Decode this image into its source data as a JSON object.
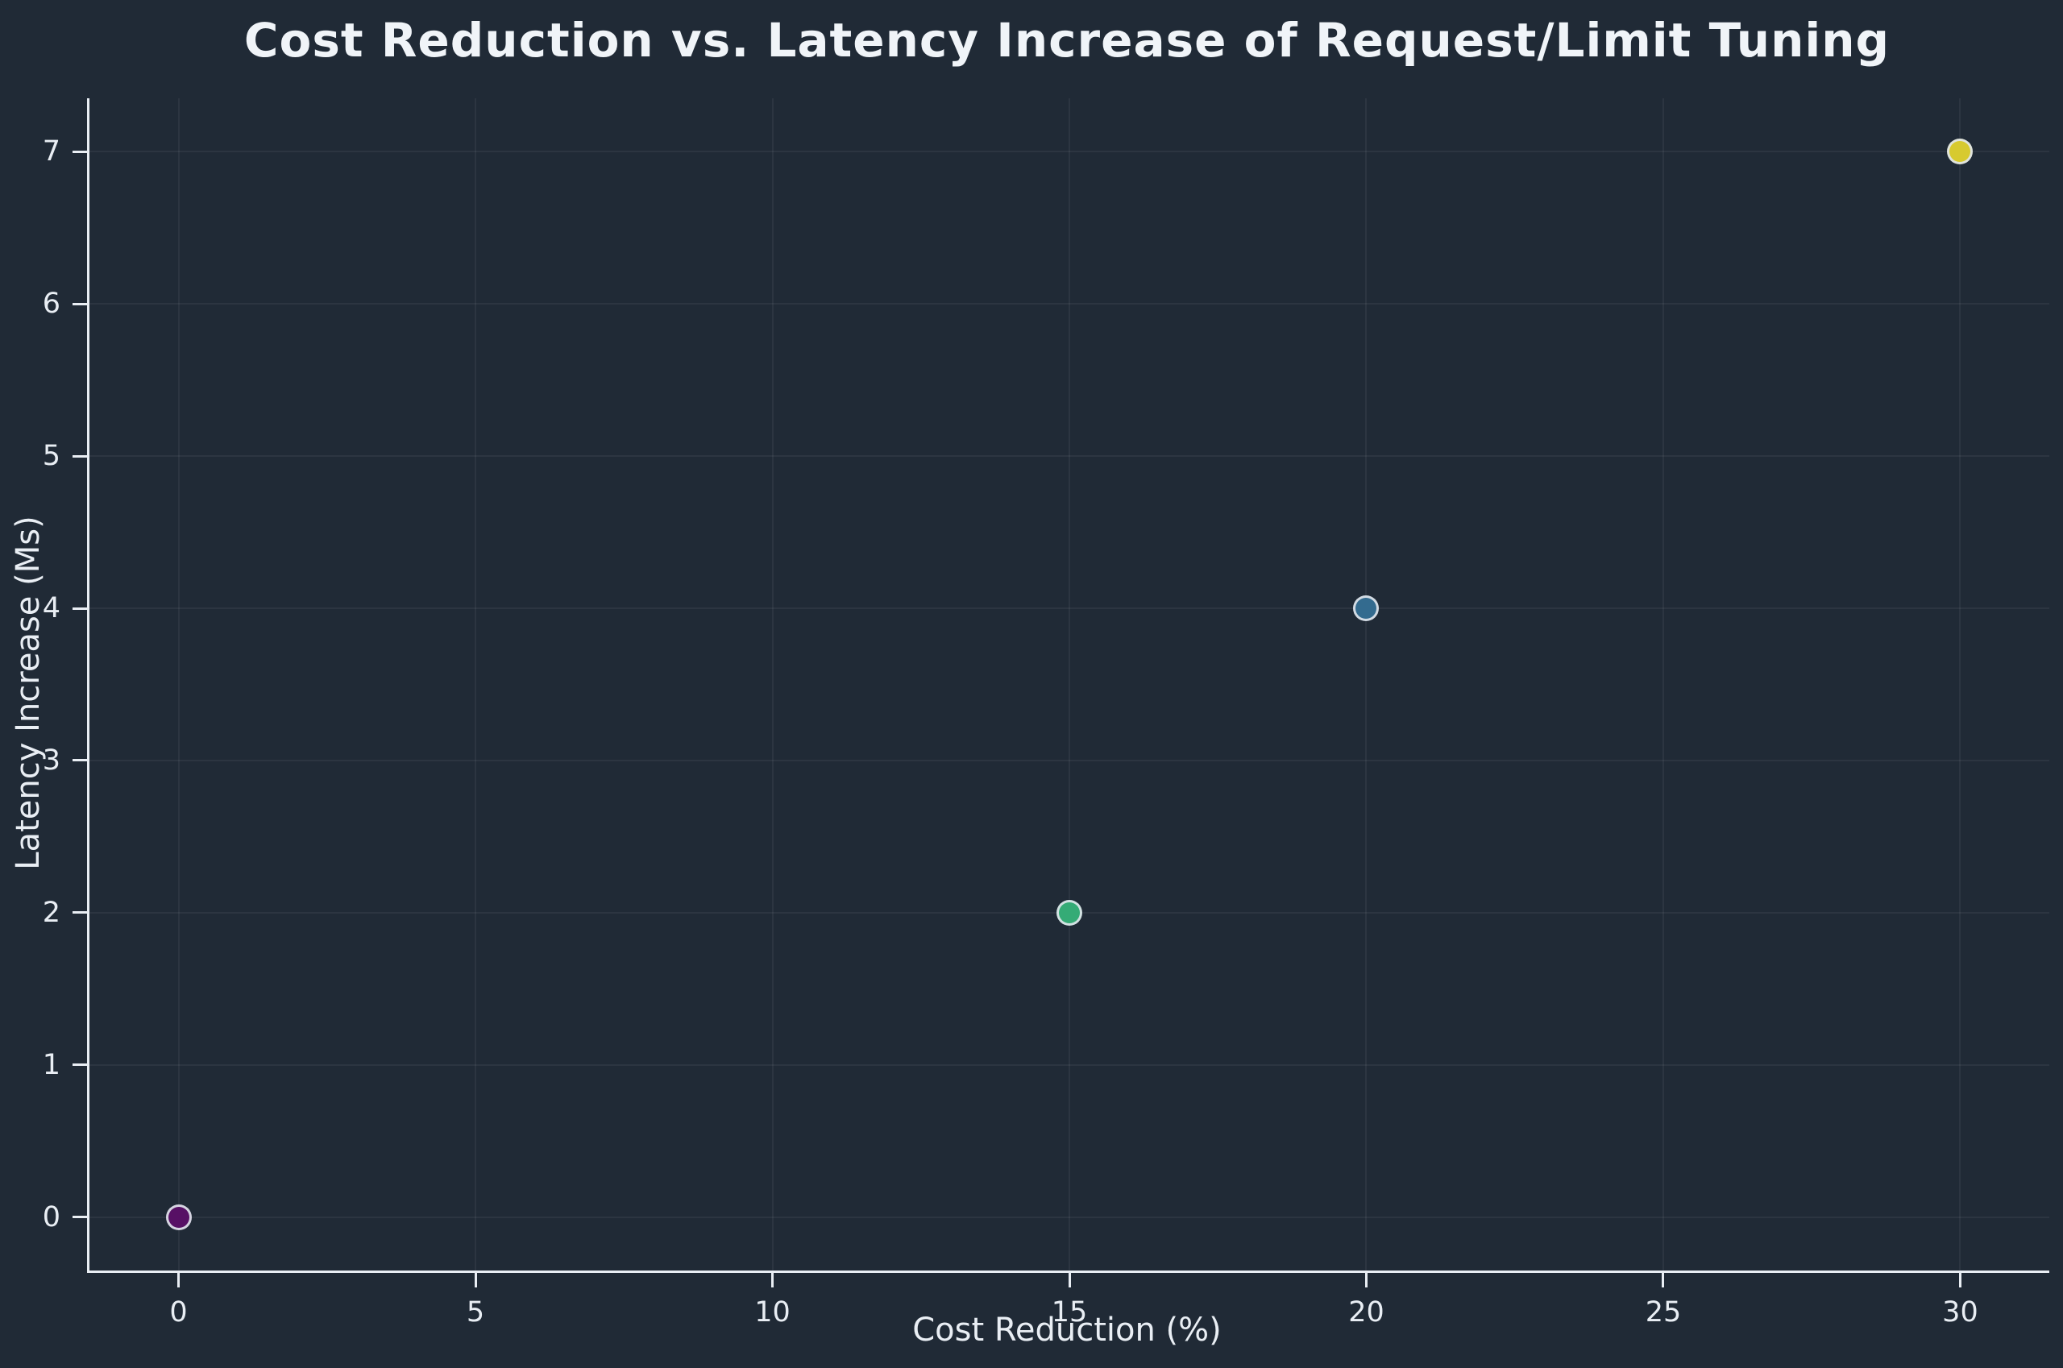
{
  "colors": {
    "background": "#202a36",
    "text": "#e9eef4",
    "spine": "#e9eef4",
    "grid": "rgba(255,255,255,0.055)",
    "marker_edge": "rgba(223,229,236,0.92)"
  },
  "chart_data": {
    "type": "scatter",
    "title": "Cost Reduction vs. Latency Increase of Request/Limit Tuning",
    "xlabel": "Cost Reduction (%)",
    "ylabel": "Latency Increase (Ms)",
    "points": [
      {
        "x": 0,
        "y": 0,
        "color": "#571065"
      },
      {
        "x": 15,
        "y": 2,
        "color": "#35ab76"
      },
      {
        "x": 20,
        "y": 4,
        "color": "#336b8f"
      },
      {
        "x": 30,
        "y": 7,
        "color": "#d7ca2f"
      }
    ],
    "x_ticks": [
      0,
      5,
      10,
      15,
      20,
      25,
      30
    ],
    "y_ticks": [
      0,
      1,
      2,
      3,
      4,
      5,
      6,
      7
    ],
    "xlim": [
      -1.5,
      31.5
    ],
    "ylim": [
      -0.35,
      7.35
    ],
    "grid": true,
    "legend": null
  }
}
